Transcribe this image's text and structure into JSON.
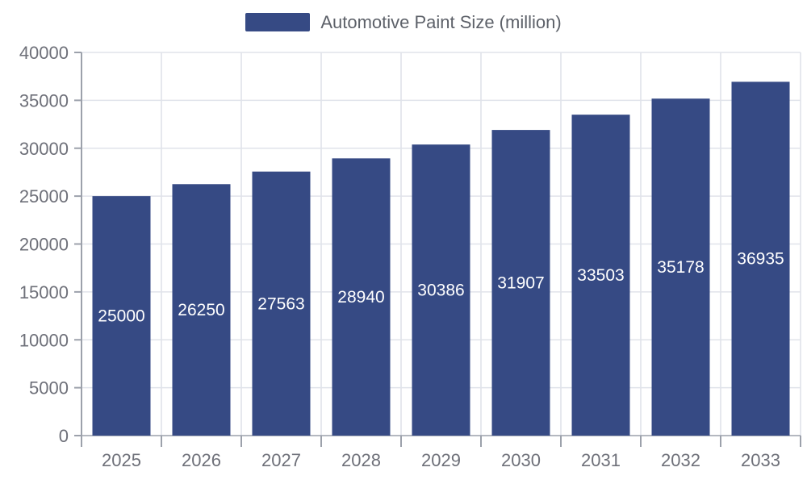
{
  "legend": {
    "label": "Automotive Paint Size (million)"
  },
  "chart_data": {
    "type": "bar",
    "title": "Automotive Paint Size (million)",
    "categories": [
      "2025",
      "2026",
      "2027",
      "2028",
      "2029",
      "2030",
      "2031",
      "2032",
      "2033"
    ],
    "series": [
      {
        "name": "Automotive Paint Size (million)",
        "values": [
          25000,
          26250,
          27563,
          28940,
          30386,
          31907,
          33503,
          35178,
          36935
        ],
        "color": "#364A84"
      }
    ],
    "value_labels": [
      "25000",
      "26250",
      "27563",
      "28940",
      "30386",
      "31907",
      "33503",
      "35178",
      "36935"
    ],
    "xlabel": "",
    "ylabel": "",
    "ylim": [
      0,
      40000
    ],
    "y_ticks": [
      0,
      5000,
      10000,
      15000,
      20000,
      25000,
      30000,
      35000,
      40000
    ],
    "grid": true,
    "legend_position": "top-center",
    "colors": {
      "bar": "#364A84",
      "bar_label": "#FFFFFF",
      "axis_text": "#6E7079",
      "legend_text": "#5D6169",
      "grid_line": "#E0E3EA",
      "axis_line": "#9CA1AB",
      "tick": "#9CA1AB",
      "background": "#FFFFFF"
    }
  }
}
